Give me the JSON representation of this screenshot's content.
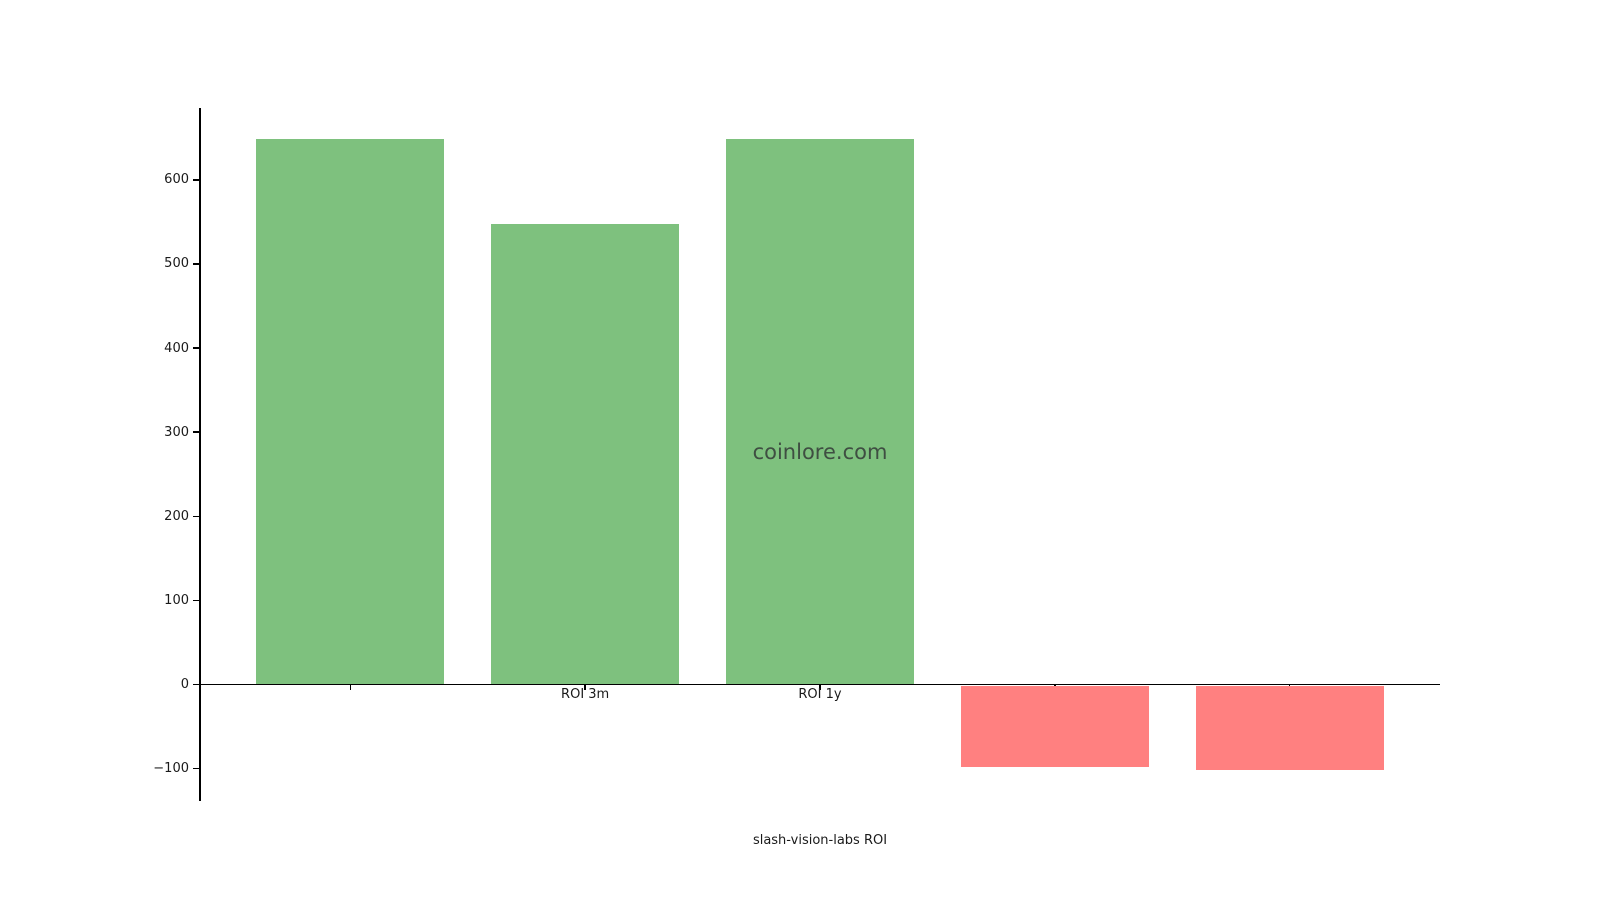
{
  "chart_data": {
    "type": "bar",
    "title": "",
    "xlabel": "slash-vision-labs ROI",
    "ylabel": "",
    "watermark": "coinlore.com",
    "categories": [
      "",
      "ROI 3m",
      "ROI 1y",
      "",
      ""
    ],
    "values": [
      649,
      547,
      649,
      -96,
      -100
    ],
    "bar_colors": [
      "#7EC17E",
      "#7EC17E",
      "#7EC17E",
      "#FF8080",
      "#FF8080"
    ],
    "positive_color": "#7EC17E",
    "negative_color": "#FF8080",
    "ylim": [
      -138,
      686
    ],
    "yticks": [
      {
        "value": 600,
        "label": "600"
      },
      {
        "value": 500,
        "label": "500"
      },
      {
        "value": 400,
        "label": "400"
      },
      {
        "value": 300,
        "label": "300"
      },
      {
        "value": 200,
        "label": "200"
      },
      {
        "value": 100,
        "label": "100"
      },
      {
        "value": 0,
        "label": "0"
      },
      {
        "value": -100,
        "label": "−100"
      }
    ],
    "grid": false,
    "legend": "none",
    "colors": {
      "axis": "#000000",
      "tick_text": "#1a1a1a",
      "watermark_text": "#3F4E42",
      "background": "#ffffff"
    }
  }
}
